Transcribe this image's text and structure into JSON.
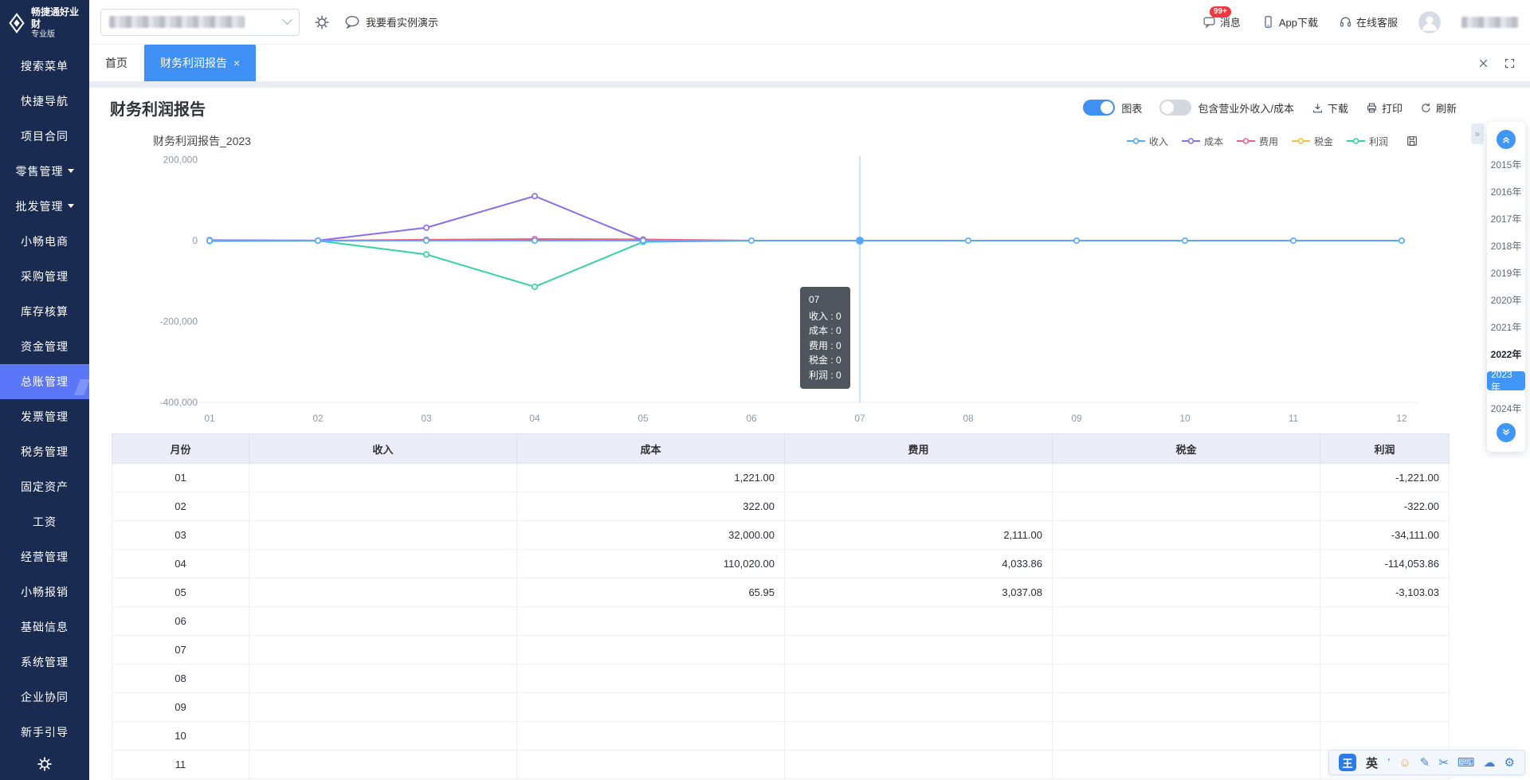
{
  "colors": {
    "accent_blue": "#3f90f5",
    "sidebar_bg": "#1a2b52",
    "sidebar_active": "#5b76f7",
    "badge_red": "#f5353f",
    "table_header_bg": "#eaedf7"
  },
  "sidebar": {
    "logo_title": "畅捷通好业财",
    "logo_subtitle": "专业版",
    "items": [
      {
        "label": "搜索菜单"
      },
      {
        "label": "快捷导航"
      },
      {
        "label": "项目合同"
      },
      {
        "label": "零售管理",
        "caret": true
      },
      {
        "label": "批发管理",
        "caret": true
      },
      {
        "label": "小畅电商"
      },
      {
        "label": "采购管理"
      },
      {
        "label": "库存核算"
      },
      {
        "label": "资金管理"
      },
      {
        "label": "总账管理",
        "active": true
      },
      {
        "label": "发票管理"
      },
      {
        "label": "税务管理"
      },
      {
        "label": "固定资产"
      },
      {
        "label": "工资"
      },
      {
        "label": "经营管理"
      },
      {
        "label": "小畅报销"
      },
      {
        "label": "基础信息"
      },
      {
        "label": "系统管理"
      },
      {
        "label": "企业协同"
      },
      {
        "label": "新手引导"
      }
    ]
  },
  "topbar": {
    "demo_text": "我要看实例演示",
    "messages": "消息",
    "messages_badge": "99+",
    "app_download": "App下载",
    "online_service": "在线客服"
  },
  "tabs": [
    {
      "label": "首页",
      "active": false
    },
    {
      "label": "财务利润报告",
      "active": true,
      "closable": true
    }
  ],
  "page": {
    "title": "财务利润报告",
    "chart_toggle_label": "图表",
    "chart_toggle_on": true,
    "include_toggle_label": "包含营业外收入/成本",
    "include_toggle_on": false,
    "download_label": "下载",
    "print_label": "打印",
    "refresh_label": "刷新"
  },
  "chart_data": {
    "type": "line",
    "title": "财务利润报告_2023",
    "x": [
      "01",
      "02",
      "03",
      "04",
      "05",
      "06",
      "07",
      "08",
      "09",
      "10",
      "11",
      "12"
    ],
    "y_ticks": [
      200000,
      0,
      -200000,
      -400000
    ],
    "y_tick_labels": [
      "200,000",
      "0",
      "-200,000",
      "-400,000"
    ],
    "ylim": [
      -400000,
      200000
    ],
    "legend_position": "top-right",
    "grid": false,
    "series": [
      {
        "name": "收入",
        "color": "#57a7ff",
        "show_all_points": true,
        "values": [
          0,
          0,
          0,
          0,
          0,
          0,
          0,
          0,
          0,
          0,
          0,
          0
        ]
      },
      {
        "name": "成本",
        "color": "#8a6fe8",
        "values": [
          1221,
          322,
          32000,
          110020,
          65.95,
          0,
          0,
          0,
          0,
          0,
          0,
          0
        ]
      },
      {
        "name": "费用",
        "color": "#e8638c",
        "values": [
          0,
          0,
          2111,
          4033.86,
          3037.08,
          0,
          0,
          0,
          0,
          0,
          0,
          0
        ]
      },
      {
        "name": "税金",
        "color": "#f0c13d",
        "values": [
          0,
          0,
          0,
          0,
          0,
          0,
          0,
          0,
          0,
          0,
          0,
          0
        ]
      },
      {
        "name": "利润",
        "color": "#34d1a4",
        "values": [
          -1221,
          -322,
          -34111,
          -114053.86,
          -3103.03,
          0,
          0,
          0,
          0,
          0,
          0,
          0
        ]
      }
    ],
    "highlight_index": 6,
    "tooltip": {
      "title": "07",
      "lines": [
        "收入 : 0",
        "成本 : 0",
        "费用 : 0",
        "税金 : 0",
        "利润 : 0"
      ]
    }
  },
  "year_panel": {
    "years": [
      "2015年",
      "2016年",
      "2017年",
      "2018年",
      "2019年",
      "2020年",
      "2021年",
      "2022年",
      "2023年",
      "2024年"
    ],
    "active": "2023年",
    "emphasis": "2022年"
  },
  "table": {
    "headers": [
      "月份",
      "收入",
      "成本",
      "费用",
      "税金",
      "利润"
    ],
    "rows": [
      [
        "01",
        "",
        "1,221.00",
        "",
        "",
        "-1,221.00"
      ],
      [
        "02",
        "",
        "322.00",
        "",
        "",
        "-322.00"
      ],
      [
        "03",
        "",
        "32,000.00",
        "2,111.00",
        "",
        "-34,111.00"
      ],
      [
        "04",
        "",
        "110,020.00",
        "4,033.86",
        "",
        "-114,053.86"
      ],
      [
        "05",
        "",
        "65.95",
        "3,037.08",
        "",
        "-3,103.03"
      ],
      [
        "06",
        "",
        "",
        "",
        "",
        ""
      ],
      [
        "07",
        "",
        "",
        "",
        "",
        ""
      ],
      [
        "08",
        "",
        "",
        "",
        "",
        ""
      ],
      [
        "09",
        "",
        "",
        "",
        "",
        ""
      ],
      [
        "10",
        "",
        "",
        "",
        "",
        ""
      ],
      [
        "11",
        "",
        "",
        "",
        "",
        ""
      ]
    ]
  },
  "ime": {
    "logo": "王",
    "lang": "英",
    "icons": [
      "apostrophe",
      "smiley",
      "pencil",
      "scissors",
      "keyboard",
      "cloud",
      "settings"
    ]
  }
}
